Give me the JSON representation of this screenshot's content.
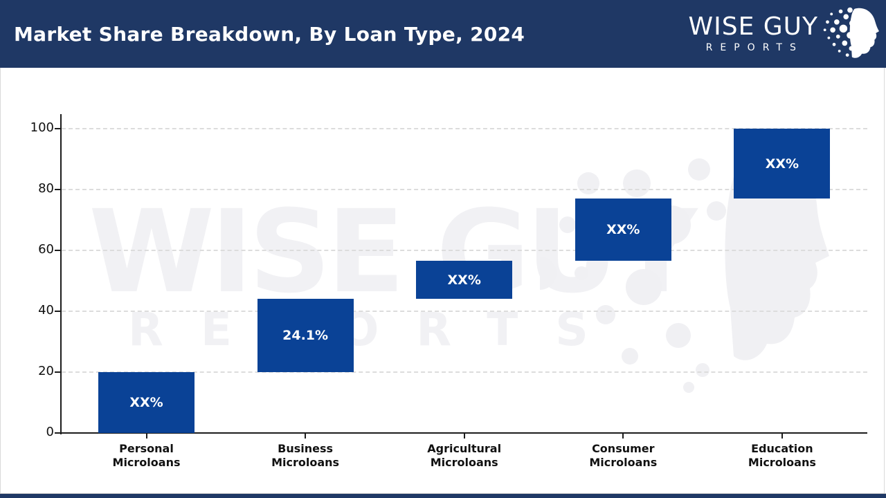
{
  "header": {
    "title": "Market Share Breakdown, By Loan Type, 2024",
    "brand": {
      "name_top": "WISE GUY",
      "name_bottom": "REPORTS",
      "face_icon": "dotted-head-profile"
    },
    "bg_color": "#1f3865",
    "text_color": "#ffffff"
  },
  "watermark": {
    "line1": "WISE GUY",
    "line2": "REPORTS",
    "color": "#f1f1f4"
  },
  "chart_data": {
    "type": "bar",
    "subtype": "waterfall",
    "title": "Market Share Breakdown, By Loan Type, 2024",
    "categories": [
      "Personal Microloans",
      "Business Microloans",
      "Agricultural Microloans",
      "Consumer Microloans",
      "Education Microloans"
    ],
    "segments": [
      {
        "category_lines": [
          "Personal",
          "Microloans"
        ],
        "start": 0,
        "end": 20,
        "label": "XX%"
      },
      {
        "category_lines": [
          "Business",
          "Microloans"
        ],
        "start": 20,
        "end": 44.1,
        "label": "24.1%"
      },
      {
        "category_lines": [
          "Agricultural",
          "Microloans"
        ],
        "start": 44.1,
        "end": 56.5,
        "label": "XX%"
      },
      {
        "category_lines": [
          "Consumer",
          "Microloans"
        ],
        "start": 56.5,
        "end": 77,
        "label": "XX%"
      },
      {
        "category_lines": [
          "Education",
          "Microloans"
        ],
        "start": 77,
        "end": 100,
        "label": "XX%"
      }
    ],
    "xlabel": "",
    "ylabel": "",
    "ylim": [
      0,
      100
    ],
    "yticks": [
      0,
      20,
      40,
      60,
      80,
      100
    ],
    "grid": "horizontal-dashed",
    "legend": "none",
    "bar_color": "#0a4296",
    "bar_label_color": "#ffffff",
    "axis_color": "#1c1c1c"
  }
}
